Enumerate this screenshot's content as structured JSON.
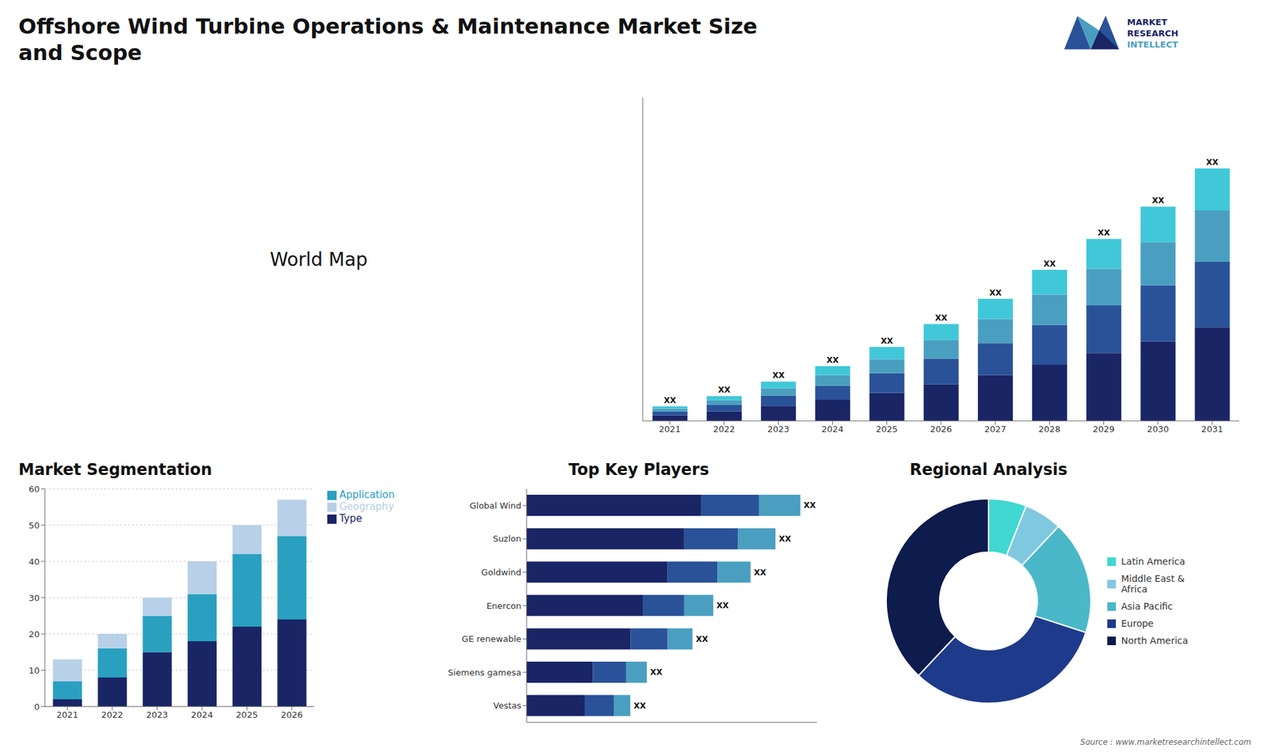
{
  "title": "Offshore Wind Turbine Operations & Maintenance Market Size\nand Scope",
  "annotations": [
    "World Map",
    "MARKET",
    "RESEARCH",
    "INTELLECT",
    "Source : www.marketresearchintellect.com"
  ],
  "chart_data": [
    {
      "type": "bar",
      "stacked": true,
      "grid": false,
      "tick_labels": "x",
      "categories": [
        "2021",
        "2022",
        "2023",
        "2024",
        "2025",
        "2026",
        "2027",
        "2028",
        "2029",
        "2030",
        "2031"
      ],
      "series": [
        {
          "color": "#1a2566",
          "values": [
            1.2,
            2.0,
            3.2,
            4.5,
            6.0,
            7.8,
            9.8,
            12.0,
            14.5,
            17.0,
            20.0
          ]
        },
        {
          "color": "#2a5298",
          "values": [
            0.8,
            1.4,
            2.2,
            3.0,
            4.2,
            5.5,
            6.8,
            8.5,
            10.2,
            12.0,
            14.0
          ]
        },
        {
          "color": "#4a9fc0",
          "values": [
            0.6,
            1.0,
            1.6,
            2.3,
            3.0,
            4.0,
            5.2,
            6.5,
            7.8,
            9.2,
            11.0
          ]
        },
        {
          "color": "#40c8d8",
          "values": [
            0.5,
            0.9,
            1.4,
            1.9,
            2.6,
            3.4,
            4.3,
            5.3,
            6.4,
            7.6,
            9.0
          ]
        }
      ],
      "annotations": [
        "XX",
        "XX",
        "XX",
        "XX",
        "XX",
        "XX",
        "XX",
        "XX",
        "XX",
        "XX",
        "XX"
      ],
      "ylim": [
        0,
        69.12
      ]
    },
    {
      "type": "bar",
      "title": "Market Segmentation",
      "stacked": true,
      "grid": true,
      "legend": "right",
      "categories": [
        "2021",
        "2022",
        "2023",
        "2024",
        "2025",
        "2026"
      ],
      "series": [
        {
          "name": "Type",
          "color": "#1a2566",
          "values": [
            2,
            8,
            15,
            18,
            22,
            24
          ]
        },
        {
          "name": "Application",
          "color": "#29a0c0",
          "values": [
            5,
            8,
            10,
            13,
            20,
            23
          ]
        },
        {
          "name": "Geography",
          "color": "#b8d0e8",
          "values": [
            6,
            4,
            5,
            9,
            8,
            10
          ]
        }
      ],
      "ylim": [
        0,
        60
      ],
      "yticks": [
        0,
        10,
        20,
        30,
        40,
        50,
        60
      ]
    },
    {
      "type": "bar",
      "title": "Top Key Players",
      "orientation": "horizontal",
      "stacked": true,
      "grid": false,
      "tick_labels": "y",
      "categories": [
        "Global Wind",
        "Suzlon",
        "Goldwind",
        "Enercon",
        "GE renewable",
        "Siemens gamesa",
        "Vestas"
      ],
      "series": [
        {
          "color": "#1a2566",
          "values": [
            0.42,
            0.38,
            0.34,
            0.28,
            0.25,
            0.16,
            0.14
          ]
        },
        {
          "color": "#2a5298",
          "values": [
            0.14,
            0.13,
            0.12,
            0.1,
            0.09,
            0.08,
            0.07
          ]
        },
        {
          "color": "#4a9fc0",
          "values": [
            0.1,
            0.09,
            0.08,
            0.07,
            0.06,
            0.05,
            0.04
          ]
        }
      ],
      "annotations": [
        "XX",
        "XX",
        "XX",
        "XX",
        "XX",
        "XX",
        "XX"
      ],
      "xlim": [
        0,
        0.7
      ]
    },
    {
      "type": "pie",
      "title": "Regional Analysis",
      "legend": "right",
      "categories": [
        "Latin America",
        "Middle East &\nAfrica",
        "Asia Pacific",
        "Europe",
        "North America"
      ],
      "values": [
        6,
        6,
        18,
        32,
        38
      ],
      "colors": [
        "#40d8d0",
        "#80c8e0",
        "#4ab8c8",
        "#1e3a8a",
        "#0d1b4d"
      ]
    }
  ]
}
